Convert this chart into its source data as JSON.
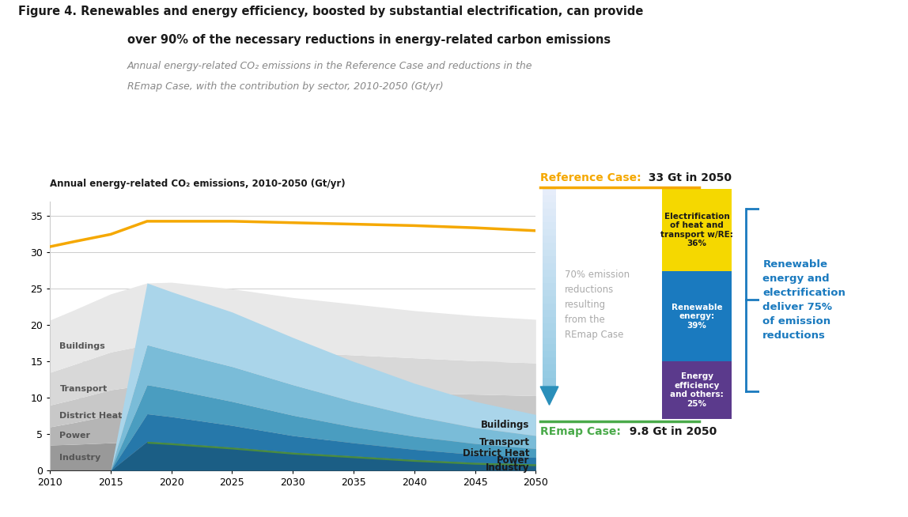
{
  "title_line1": "Figure 4. Renewables and energy efficiency, boosted by substantial electrification, can provide",
  "title_line2": "over 90% of the necessary reductions in energy-related carbon emissions",
  "subtitle_line1": "Annual energy-related CO₂ emissions in the Reference Case and reductions in the",
  "subtitle_line2": "REmap Case, with the contribution by sector, 2010-2050 (Gt/yr)",
  "axis_label": "Annual energy-related CO₂ emissions, 2010-2050 (Gt/yr)",
  "years": [
    2010,
    2012,
    2015,
    2018,
    2020,
    2025,
    2030,
    2035,
    2040,
    2045,
    2050
  ],
  "reference_case": [
    30.8,
    31.5,
    32.5,
    34.3,
    34.3,
    34.3,
    34.1,
    33.9,
    33.7,
    33.4,
    33.0
  ],
  "gray_sectors_order": [
    "Industry",
    "Power",
    "District Heat",
    "Transport",
    "Buildings"
  ],
  "gray_sectors": {
    "Industry": [
      3.5,
      3.6,
      3.8,
      4.0,
      4.1,
      4.2,
      4.2,
      4.3,
      4.3,
      4.3,
      4.3
    ],
    "Power": [
      2.5,
      3.0,
      3.8,
      3.8,
      3.8,
      3.5,
      3.2,
      3.0,
      2.9,
      2.8,
      2.7
    ],
    "District Heat": [
      3.0,
      3.2,
      3.5,
      4.0,
      4.0,
      3.8,
      3.7,
      3.6,
      3.5,
      3.4,
      3.3
    ],
    "Transport": [
      4.5,
      4.8,
      5.2,
      5.5,
      5.5,
      5.5,
      5.2,
      5.0,
      4.8,
      4.6,
      4.5
    ],
    "Buildings": [
      7.2,
      7.5,
      8.0,
      8.5,
      8.5,
      8.0,
      7.5,
      7.0,
      6.5,
      6.2,
      6.0
    ]
  },
  "blue_sectors_order": [
    "Industry",
    "Power",
    "District Heat",
    "Transport",
    "Buildings"
  ],
  "blue_sectors": {
    "Industry": [
      0,
      0,
      0,
      4.0,
      3.8,
      3.2,
      2.5,
      2.0,
      1.5,
      1.1,
      0.9
    ],
    "Power": [
      0,
      0,
      0,
      3.8,
      3.6,
      3.0,
      2.3,
      1.8,
      1.4,
      1.1,
      0.9
    ],
    "District Heat": [
      0,
      0,
      0,
      4.0,
      3.8,
      3.3,
      2.8,
      2.2,
      1.8,
      1.5,
      1.2
    ],
    "Transport": [
      0,
      0,
      0,
      5.5,
      5.2,
      4.8,
      4.2,
      3.5,
      2.8,
      2.2,
      1.8
    ],
    "Buildings": [
      0,
      0,
      0,
      8.5,
      8.2,
      7.5,
      6.5,
      5.5,
      4.5,
      3.6,
      2.9
    ]
  },
  "gray_colors": {
    "Industry": "#999999",
    "Power": "#b5b5b5",
    "District Heat": "#c8c8c8",
    "Transport": "#d8d8d8",
    "Buildings": "#e8e8e8"
  },
  "blue_colors": {
    "Industry": "#1b5e85",
    "Power": "#2678aa",
    "District Heat": "#4a9dc0",
    "Transport": "#7abcd8",
    "Buildings": "#aad5ea"
  },
  "reference_color": "#f5a800",
  "remap_color": "#4aaa4a",
  "green_strip_color": "#4a8c3f",
  "bar_colors": {
    "electrification": "#f5d800",
    "renewable": "#1a7abf",
    "efficiency": "#5b3a8c"
  },
  "bar_values": {
    "electrification": 0.36,
    "renewable": 0.39,
    "efficiency": 0.25
  },
  "reference_label": "Reference Case:",
  "reference_value": " 33 Gt in 2050",
  "remap_label": "REmap Case:",
  "remap_value": "  9.8 Gt in 2050",
  "annotation_70pct": "70% emission\nreductions\nresulting\nfrom the\nREmap Case",
  "annotation_75pct": "Renewable\nenergy and\nelectrification\ndeliver 75%\nof emission\nreductions",
  "ylim": [
    0,
    37
  ],
  "yticks": [
    0,
    5,
    10,
    15,
    20,
    25,
    30,
    35
  ],
  "xticks": [
    2010,
    2015,
    2020,
    2025,
    2030,
    2035,
    2040,
    2045,
    2050
  ]
}
